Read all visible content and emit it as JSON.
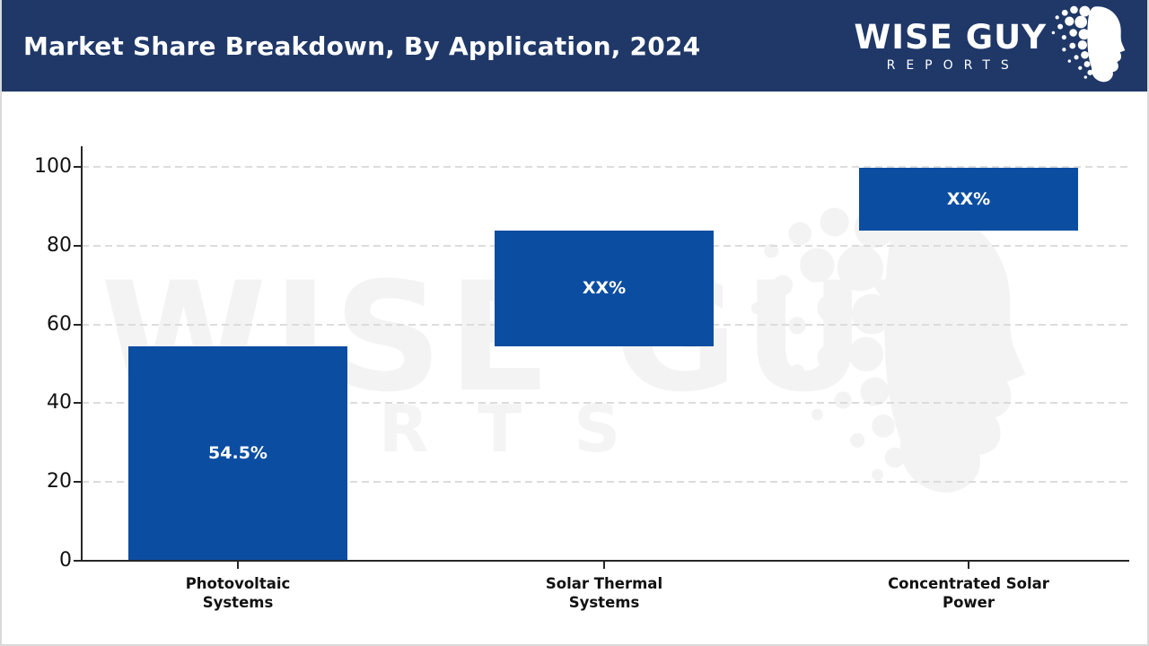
{
  "header": {
    "title": "Market Share Breakdown, By Application, 2024",
    "bg_color": "#1f3868",
    "logo": {
      "brand_line1": "WISE GUY",
      "brand_line2": "REPORTS"
    }
  },
  "watermark": {
    "line1": "WISE GUY",
    "line2": "PORTS"
  },
  "chart_data": {
    "type": "bar",
    "subtype": "waterfall",
    "title": "Market Share Breakdown, By Application, 2024",
    "unit": "%",
    "categories": [
      [
        "Photovoltaic",
        "Systems"
      ],
      [
        "Solar Thermal",
        "Systems"
      ],
      [
        "Concentrated Solar",
        "Power"
      ]
    ],
    "series": [
      {
        "name": "Photovoltaic Systems",
        "start": 0,
        "end": 54.5,
        "label": "54.5%"
      },
      {
        "name": "Solar Thermal Systems",
        "start": 54.5,
        "end": 83.8,
        "label": "XX%"
      },
      {
        "name": "Concentrated Solar Power",
        "start": 83.8,
        "end": 99.8,
        "label": "XX%"
      }
    ],
    "ylim": [
      0,
      100
    ],
    "yticks": [
      0,
      20,
      40,
      60,
      80,
      100
    ],
    "grid": "horizontal-dashed",
    "gridline_color": "#dcdcdc",
    "axis_color": "#262626",
    "bar_color": "#0b4da1",
    "bar_label_color": "#ffffff",
    "legend": "none"
  }
}
